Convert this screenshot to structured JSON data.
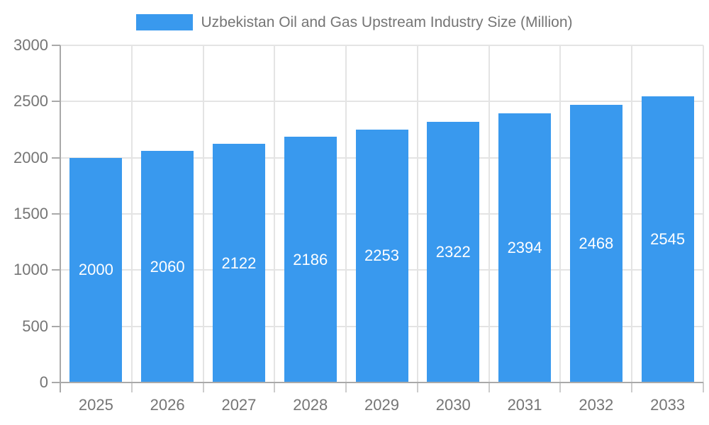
{
  "colors": {
    "bar": "#3999EE",
    "axis_text": "#757575",
    "grid_line": "#e4e4e4",
    "axis_line": "#a9a9a9",
    "tick_line": "#cccccc",
    "bar_label": "#ffffff",
    "background": "#ffffff"
  },
  "legend": {
    "label": "Uzbekistan Oil and Gas Upstream Industry Size (Million)"
  },
  "chart_data": {
    "type": "bar",
    "title": "Uzbekistan Oil and Gas Upstream Industry Size (Million)",
    "categories": [
      "2025",
      "2026",
      "2027",
      "2028",
      "2029",
      "2030",
      "2031",
      "2032",
      "2033"
    ],
    "values": [
      2000,
      2060,
      2122,
      2186,
      2253,
      2322,
      2394,
      2468,
      2545
    ],
    "xlabel": "",
    "ylabel": "",
    "ylim": [
      0,
      3000
    ],
    "yticks": [
      0,
      500,
      1000,
      1500,
      2000,
      2500,
      3000
    ],
    "grid": true,
    "legend_position": "top",
    "value_labels": "inside-center-white"
  }
}
